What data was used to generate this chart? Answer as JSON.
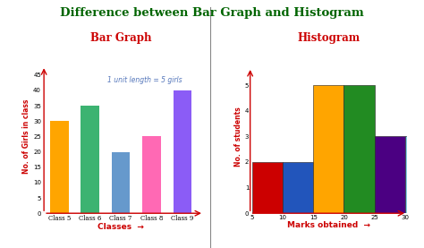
{
  "title": "Difference between Bar Graph and Histogram",
  "title_color": "#006400",
  "title_fontsize": 9.5,
  "bar_title": "Bar Graph",
  "bar_title_color": "#cc0000",
  "bar_xlabel": "Classes",
  "bar_ylabel": "No. of Girls in class",
  "bar_categories": [
    "Class 5",
    "Class 6",
    "Class 7",
    "Class 8",
    "Class 9"
  ],
  "bar_values": [
    30,
    35,
    20,
    25,
    40
  ],
  "bar_colors": [
    "#FFA500",
    "#3CB371",
    "#6699CC",
    "#FF69B4",
    "#8B5CF6"
  ],
  "bar_ylim": [
    0,
    50
  ],
  "bar_yticks": [
    0,
    5,
    10,
    15,
    20,
    25,
    30,
    35,
    40,
    45
  ],
  "bar_annotation": "1 unit length = 5 girls",
  "bar_annotation_color": "#5577BB",
  "hist_title": "Histogram",
  "hist_title_color": "#cc0000",
  "hist_xlabel": "Marks obtained",
  "hist_ylabel": "No. of students",
  "hist_edges": [
    5,
    10,
    15,
    20,
    25,
    30
  ],
  "hist_values": [
    2,
    2,
    5,
    5,
    3,
    3
  ],
  "hist_colors": [
    "#cc0000",
    "#2255bb",
    "#FFA500",
    "#228B22",
    "#4B0082",
    "#87CEEB"
  ],
  "hist_ylim": [
    0,
    6
  ],
  "hist_yticks": [
    0,
    1,
    2,
    3,
    4,
    5
  ],
  "hist_xticks": [
    5,
    10,
    15,
    20,
    25,
    30
  ],
  "axis_color": "#cc0000",
  "label_color": "#cc0000",
  "tick_color": "#000000",
  "bg_color": "#ffffff",
  "divider_color": "#888888"
}
